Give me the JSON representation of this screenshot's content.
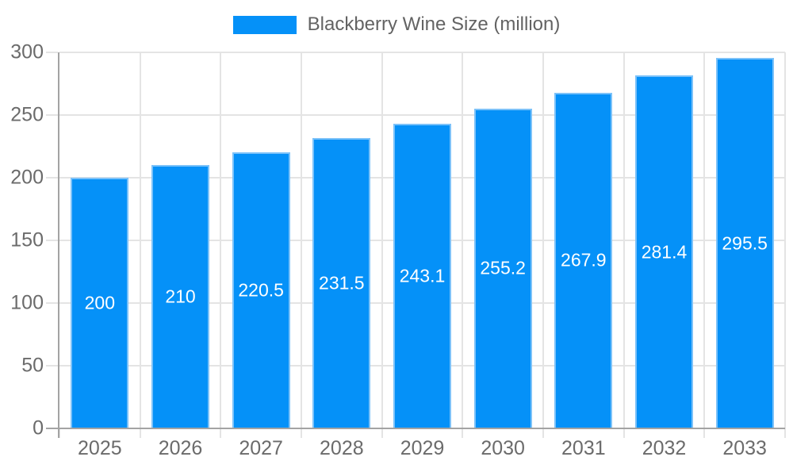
{
  "chart_data": {
    "type": "bar",
    "title": "Blackberry Wine Size (million)",
    "legend": {
      "label": "Blackberry Wine Size (million)",
      "position": "top-center"
    },
    "categories": [
      "2025",
      "2026",
      "2027",
      "2028",
      "2029",
      "2030",
      "2031",
      "2032",
      "2033"
    ],
    "series": [
      {
        "name": "Blackberry Wine Size (million)",
        "values": [
          200,
          210,
          220.5,
          231.5,
          243.1,
          255.2,
          267.9,
          281.4,
          295.5
        ],
        "data_labels": [
          "200",
          "210",
          "220.5",
          "231.5",
          "243.1",
          "255.2",
          "267.9",
          "281.4",
          "295.5"
        ]
      }
    ],
    "xlabel": "",
    "ylabel": "",
    "y_axis": {
      "min": 0,
      "max": 300,
      "tick_step": 50,
      "tick_values": [
        0,
        50,
        100,
        150,
        200,
        250,
        300
      ],
      "tick_labels": [
        "0",
        "50",
        "100",
        "150",
        "200",
        "250",
        "300"
      ]
    },
    "grid": true,
    "data_label_position": "inside-center"
  },
  "colors": {
    "bar": "#0591F8",
    "bar_edge": "#7CC2F9",
    "grid": "#E4E4E4",
    "axis_line": "#A3A3A3",
    "axis_text": "#6B6B6B",
    "legend_text": "#636363",
    "value_label": "#FFFFFF",
    "background": "#FFFFFF"
  }
}
